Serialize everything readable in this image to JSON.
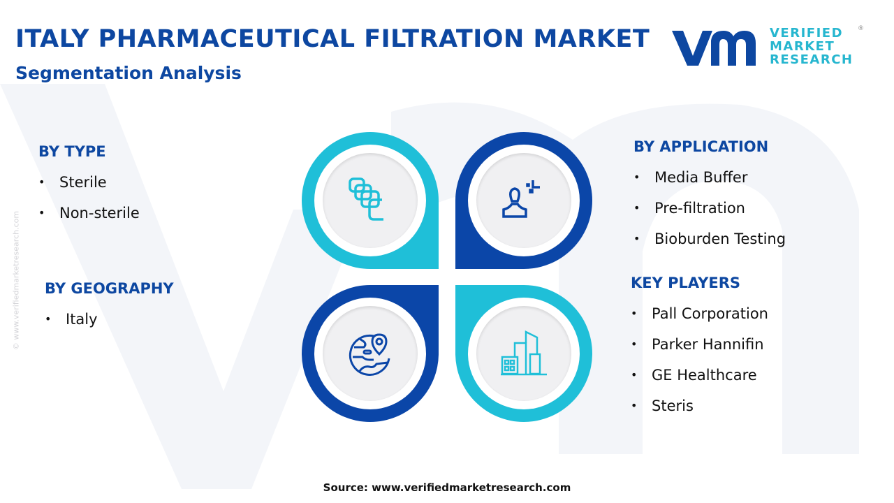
{
  "header": {
    "title": "ITALY PHARMACEUTICAL FILTRATION MARKET",
    "subtitle": "Segmentation Analysis"
  },
  "logo": {
    "mark": "vmr",
    "line1": "VERIFIED",
    "line2": "MARKET",
    "line3": "RESEARCH",
    "registered": "®"
  },
  "watermark": {
    "vertical_text": "© www.verifiedmarketresearch.com"
  },
  "segments": {
    "type": {
      "heading": "BY TYPE",
      "items": [
        "Sterile",
        "Non-sterile"
      ]
    },
    "geography": {
      "heading": "BY GEOGRAPHY",
      "items": [
        "Italy"
      ]
    },
    "application": {
      "heading": "BY APPLICATION",
      "items": [
        "Media Buffer",
        "Pre-filtration",
        "Bioburden Testing"
      ]
    },
    "key_players": {
      "heading": "KEY PLAYERS",
      "items": [
        "Pall Corporation",
        "Parker Hannifin",
        "GE Healthcare",
        "Steris"
      ]
    }
  },
  "icons": [
    "layers-icon",
    "person-icon",
    "globe-location-icon",
    "buildings-icon"
  ],
  "colors": {
    "primary": "#0d47a1",
    "accent": "#1fbfd8",
    "ring_blue": "#0b46a8"
  },
  "footer": {
    "source": "Source: www.verifiedmarketresearch.com"
  }
}
